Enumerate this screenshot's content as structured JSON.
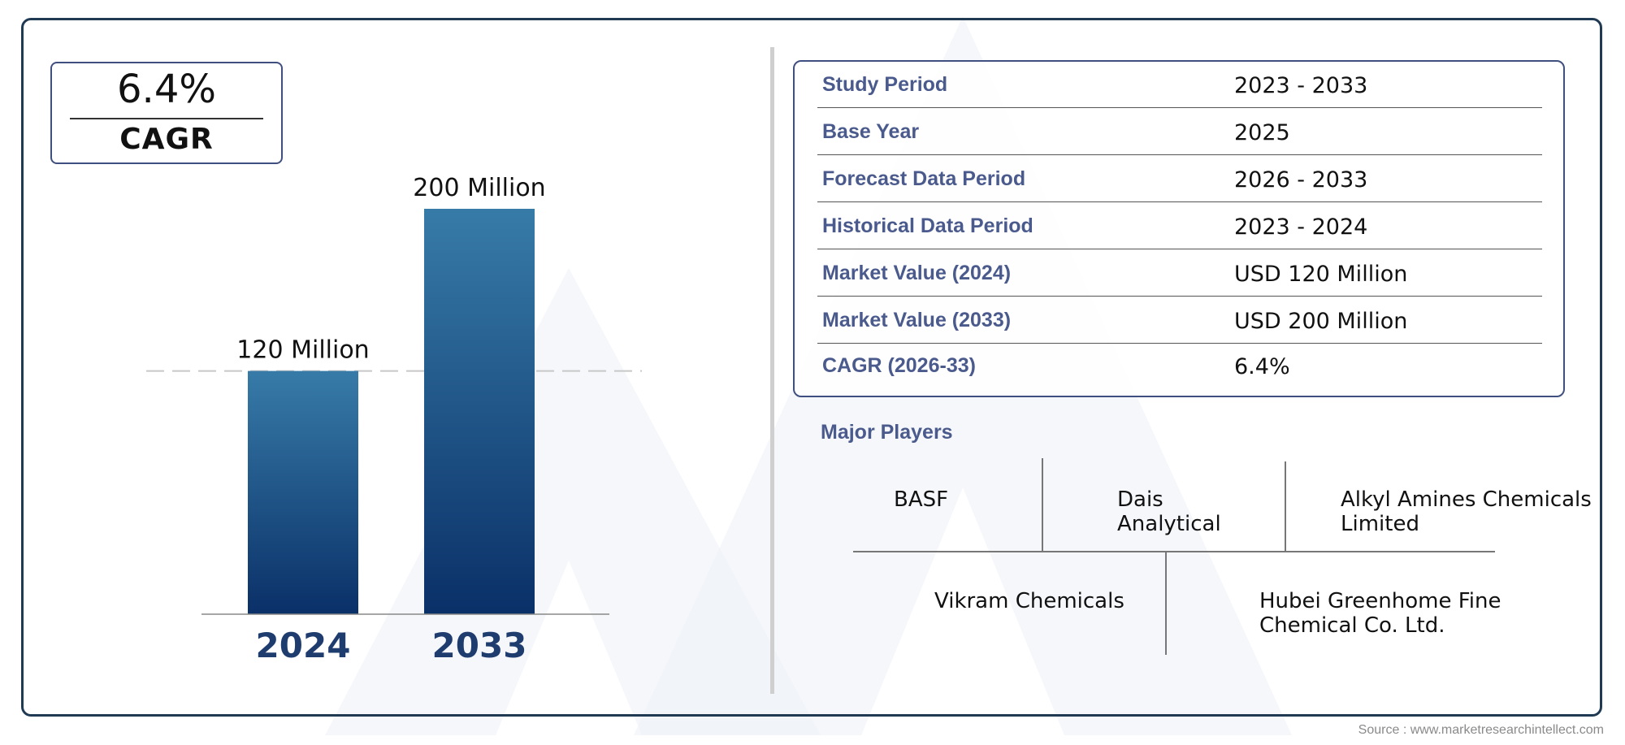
{
  "cagr_card": {
    "value": "6.4%",
    "label": "CAGR"
  },
  "chart_data": {
    "type": "bar",
    "categories": [
      "2024",
      "2033"
    ],
    "values": [
      120,
      200
    ],
    "data_labels": [
      "120 Million",
      "200 Million"
    ],
    "reference_line": 120,
    "ylim": [
      0,
      200
    ],
    "colors": {
      "bar_top": "#377ba8",
      "bar_bottom": "#0a3068",
      "year_label": "#1f3c6e",
      "reference_line": "#c8c8c8"
    }
  },
  "details": {
    "rows": [
      {
        "label": "Study Period",
        "value": "2023 - 2033"
      },
      {
        "label": "Base Year",
        "value": "2025"
      },
      {
        "label": "Forecast Data Period",
        "value": "2026 - 2033"
      },
      {
        "label": "Historical Data Period",
        "value": "2023 - 2024"
      },
      {
        "label": "Market Value (2024)",
        "value": "USD 120 Million"
      },
      {
        "label": "Market Value (2033)",
        "value": "USD 200 Million"
      },
      {
        "label": "CAGR (2026-33)",
        "value": "6.4%"
      }
    ]
  },
  "players": {
    "title": "Major Players",
    "items": [
      "BASF",
      "Dais Analytical",
      "Alkyl Amines Chemicals Limited",
      "Vikram Chemicals",
      "Hubei Greenhome Fine Chemical Co. Ltd."
    ]
  },
  "source": "Source : www.marketresearchintellect.com",
  "colors": {
    "frame": "#1f3a52",
    "accent": "#4a5a8c",
    "box_border": "#3f4f7f"
  }
}
